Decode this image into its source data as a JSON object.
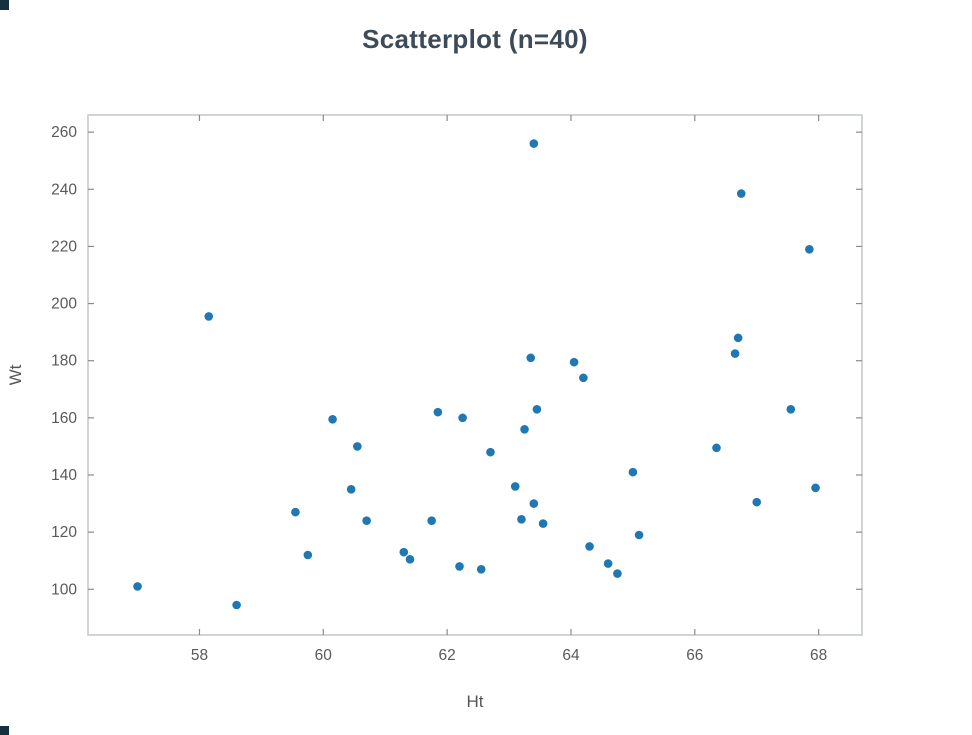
{
  "title": "Scatterplot (n=40)",
  "chart_data": {
    "type": "scatter",
    "title": "Scatterplot (n=40)",
    "xlabel": "Ht",
    "ylabel": "Wt",
    "xlim": [
      56.2,
      68.7
    ],
    "ylim": [
      84,
      266
    ],
    "x_ticks": [
      58,
      60,
      62,
      64,
      66,
      68
    ],
    "y_ticks": [
      100,
      120,
      140,
      160,
      180,
      200,
      220,
      240,
      260
    ],
    "grid": false,
    "legend": "none",
    "point_color": "#1f77b4",
    "axis_box_color": "#c3c7cb",
    "tick_color": "#8a8a8a",
    "tick_label_color": "#595959",
    "x": [
      57.0,
      58.15,
      58.6,
      59.55,
      59.75,
      60.15,
      60.45,
      60.55,
      60.7,
      61.3,
      61.4,
      61.75,
      61.85,
      62.2,
      62.25,
      62.55,
      62.7,
      63.1,
      63.2,
      63.25,
      63.35,
      63.4,
      63.4,
      63.45,
      63.55,
      64.05,
      64.2,
      64.3,
      64.6,
      64.75,
      65.0,
      65.1,
      66.35,
      66.65,
      66.7,
      66.75,
      67.0,
      67.55,
      67.85,
      67.95
    ],
    "y": [
      101,
      195.5,
      94.5,
      127,
      112,
      159.5,
      135,
      150,
      124,
      113,
      110.5,
      124,
      162,
      108,
      160,
      107,
      148,
      136,
      124.5,
      156,
      181,
      256,
      130,
      163,
      123,
      179.5,
      174,
      115,
      109,
      105.5,
      141,
      119,
      149.5,
      182.5,
      188,
      238.5,
      130.5,
      163,
      219,
      135.5
    ]
  },
  "decor": {
    "corner_mark_color": "#15313f"
  }
}
